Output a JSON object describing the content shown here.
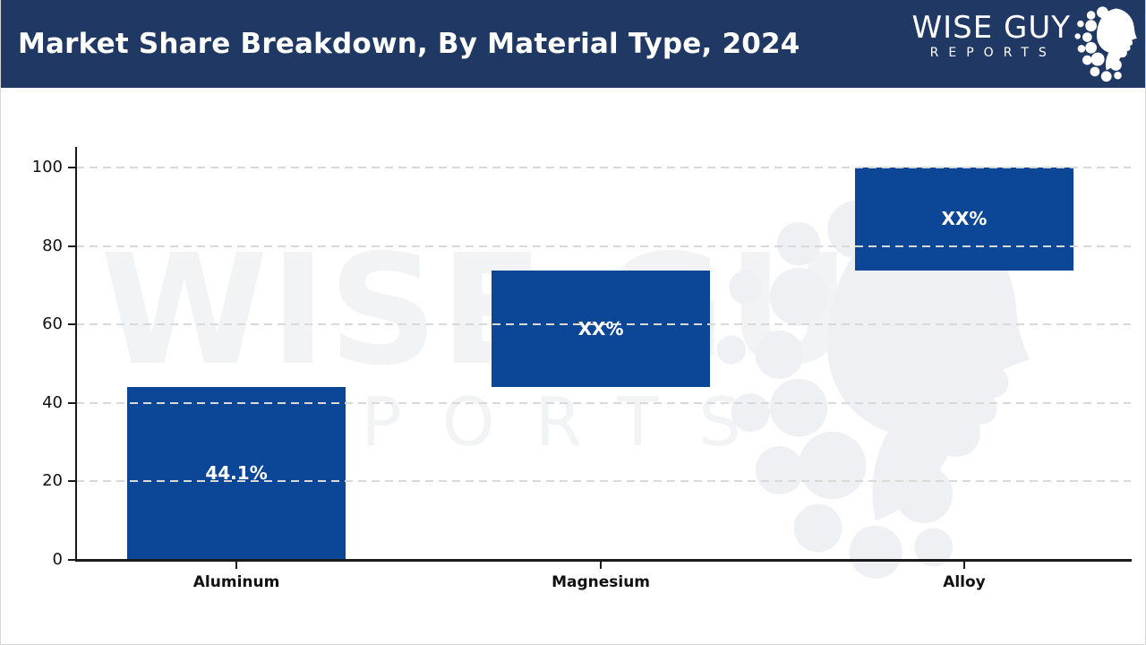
{
  "header": {
    "title": "Market Share Breakdown, By Material Type, 2024",
    "background": "#1f3864",
    "logo": {
      "line1": "WISE GUY",
      "line2": "REPORTS"
    }
  },
  "watermark": {
    "line1": "WISE GUY",
    "line2": "REPORTS"
  },
  "chart_data": {
    "type": "bar",
    "subtype": "floating-waterfall",
    "title": "Market Share Breakdown, By Material Type, 2024",
    "categories": [
      "Aluminum",
      "Magnesium",
      "Alloy"
    ],
    "segments": [
      {
        "category": "Aluminum",
        "start": 0,
        "end": 44.1,
        "label": "44.1%"
      },
      {
        "category": "Magnesium",
        "start": 44.1,
        "end": 73.8,
        "label": "XX%"
      },
      {
        "category": "Alloy",
        "start": 73.8,
        "end": 100,
        "label": "XX%"
      }
    ],
    "yticks": [
      0,
      20,
      40,
      60,
      80,
      100
    ],
    "ylim": [
      0,
      105
    ],
    "xlabel": "",
    "ylabel": "",
    "grid": {
      "horizontal": true,
      "style": "dashed",
      "color": "#d9d9d9",
      "above_bars": true
    },
    "legend": "none",
    "bar_color": "#0b4697",
    "bar_label_color": "#ffffff",
    "axis_color": "#1a1a1a"
  }
}
